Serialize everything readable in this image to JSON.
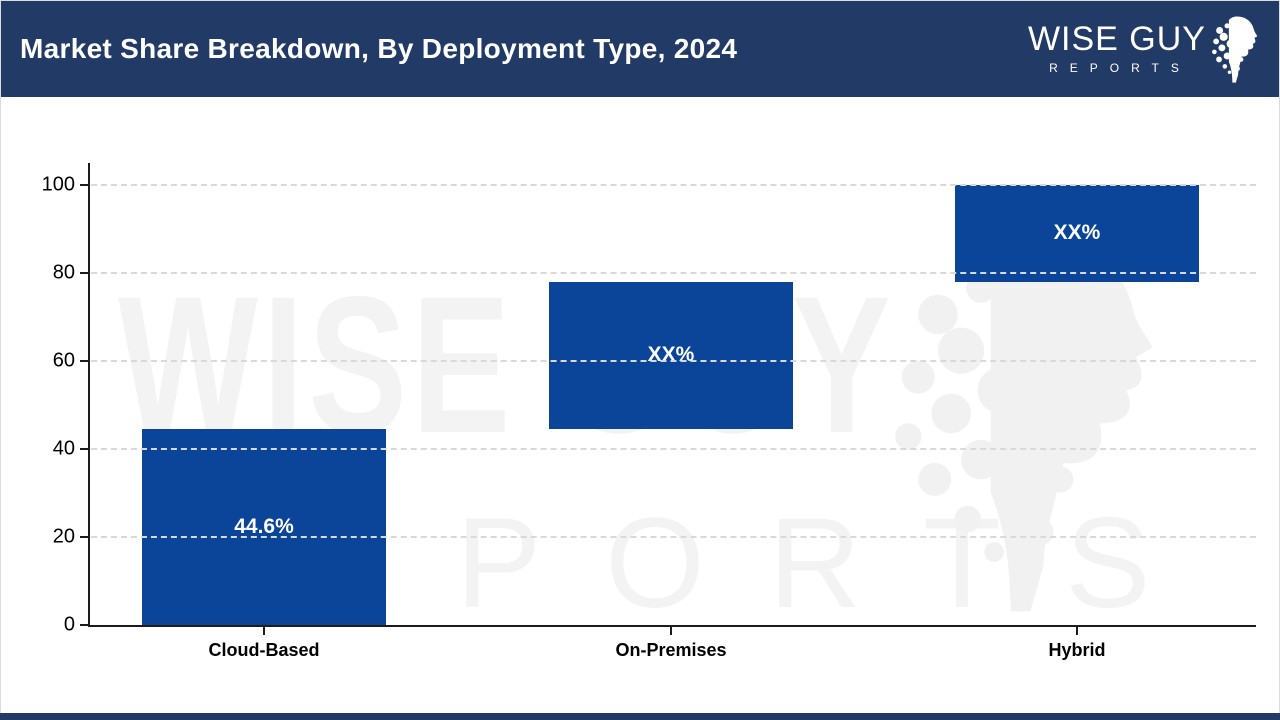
{
  "header": {
    "title": "Market Share Breakdown, By Deployment Type, 2024",
    "logo": {
      "wordmark": "WISE GUY",
      "subtext": "REPORTS"
    }
  },
  "watermark": {
    "wordmark": "WISE GUY",
    "subtext": "REPORTS"
  },
  "chart_data": {
    "type": "bar",
    "variant": "waterfall",
    "title": "Market Share Breakdown, By Deployment Type, 2024",
    "categories": [
      "Cloud-Based",
      "On-Premises",
      "Hybrid"
    ],
    "segments": [
      {
        "category": "Cloud-Based",
        "start": 0,
        "end": 44.6,
        "label": "44.6%"
      },
      {
        "category": "On-Premises",
        "start": 44.6,
        "end": 78,
        "label": "XX%"
      },
      {
        "category": "Hybrid",
        "start": 78,
        "end": 100,
        "label": "XX%"
      }
    ],
    "xlabel": "",
    "ylabel": "",
    "yticks": [
      0,
      20,
      40,
      60,
      80,
      100
    ],
    "ylim": [
      0,
      105
    ],
    "grid": "horizontal-dashed",
    "legend": "none",
    "bar_color": "#0A4599"
  },
  "colors": {
    "header_bg": "#213A66",
    "footer_bg": "#213A66",
    "bar": "#0A4599",
    "gridline": "#D9D9D9",
    "axis": "#1C1C1C",
    "watermark": "#F3F3F3"
  }
}
